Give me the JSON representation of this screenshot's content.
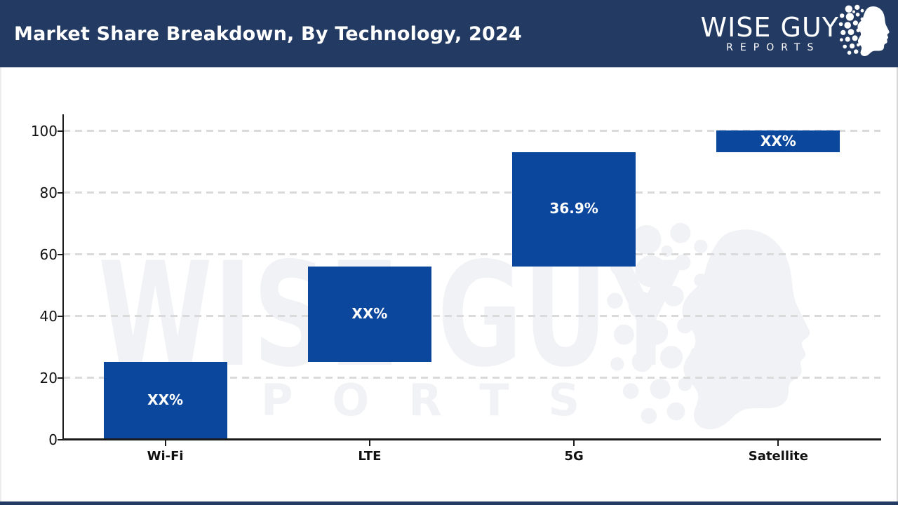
{
  "header": {
    "title": "Market Share Breakdown, By Technology, 2024",
    "logo": {
      "line1": "WISE GUY",
      "line2": "REPORTS"
    }
  },
  "watermark": {
    "line1": "WISE GUY",
    "line2": "REPORTS"
  },
  "chart_data": {
    "type": "bar",
    "subtype": "floating-segment (waterfall-style market share breakdown)",
    "title": "Market Share Breakdown, By Technology, 2024",
    "categories": [
      "Wi-Fi",
      "LTE",
      "5G",
      "Satellite"
    ],
    "segments": [
      {
        "category": "Wi-Fi",
        "start": 0,
        "end": 25,
        "label": "XX%"
      },
      {
        "category": "LTE",
        "start": 25,
        "end": 56,
        "label": "XX%"
      },
      {
        "category": "5G",
        "start": 56,
        "end": 92.9,
        "label": "36.9%"
      },
      {
        "category": "Satellite",
        "start": 92.9,
        "end": 100,
        "label": "XX%"
      }
    ],
    "xlabel": "",
    "ylabel": "",
    "yticks": [
      0,
      20,
      40,
      60,
      80,
      100
    ],
    "ylim": [
      0,
      105
    ],
    "grid": "horizontal dashed",
    "legend": "none",
    "bar_color": "#0b479c",
    "label_color": "#ffffff"
  }
}
